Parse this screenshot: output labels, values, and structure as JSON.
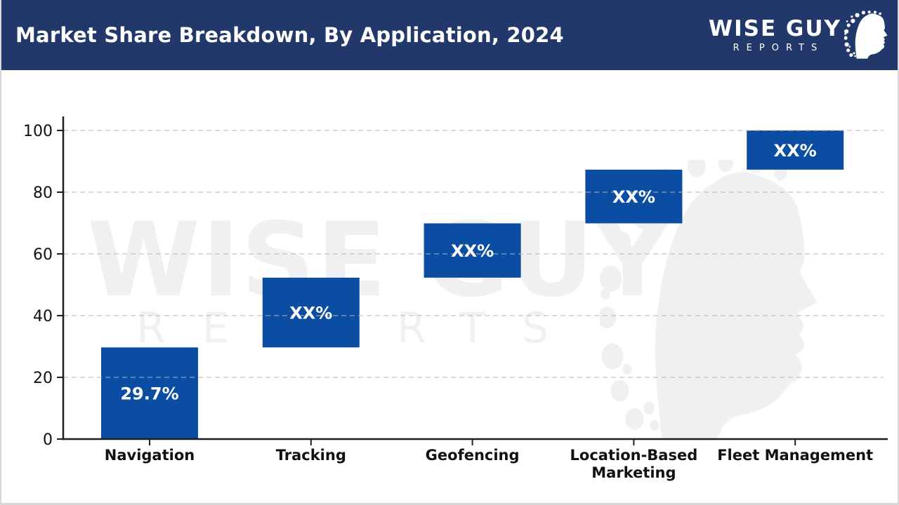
{
  "header": {
    "title": "Market Share Breakdown, By Application, 2024",
    "logo": {
      "name": "WISE GUY",
      "tagline": "REPORTS"
    }
  },
  "watermark": {
    "name": "WISE GUY",
    "tagline": "REPORTS"
  },
  "theme": {
    "header_bg": "#22386A",
    "watermark_gray": "#F0F0F3",
    "border_gray": "#D8D8D8"
  },
  "chart_data": {
    "type": "bar",
    "variant": "waterfall",
    "title": "Market Share Breakdown, By Application, 2024",
    "categories": [
      "Navigation",
      "Tracking",
      "Geofencing",
      "Location-Based Marketing",
      "Fleet Management"
    ],
    "category_label_lines": [
      [
        "Navigation"
      ],
      [
        "Tracking"
      ],
      [
        "Geofencing"
      ],
      [
        "Location-Based",
        "Marketing"
      ],
      [
        "Fleet Management"
      ]
    ],
    "segments": [
      {
        "category": "Navigation",
        "start": 0,
        "end": 29.7,
        "size": 29.7,
        "label": "29.7%"
      },
      {
        "category": "Tracking",
        "start": 29.7,
        "end": 52.3,
        "size": 22.6,
        "label": "XX%"
      },
      {
        "category": "Geofencing",
        "start": 52.3,
        "end": 69.9,
        "size": 17.6,
        "label": "XX%"
      },
      {
        "category": "Location-Based Marketing",
        "start": 69.9,
        "end": 87.3,
        "size": 17.4,
        "label": "XX%"
      },
      {
        "category": "Fleet Management",
        "start": 87.3,
        "end": 100,
        "size": 12.7,
        "label": "XX%"
      }
    ],
    "xlabel": "",
    "ylabel": "",
    "ylim": [
      0,
      100
    ],
    "yticks": [
      0,
      20,
      40,
      60,
      80,
      100
    ],
    "grid": {
      "horizontal": true,
      "style": "dashed",
      "over_bars": true
    },
    "legend": null,
    "colors": {
      "bar": "#0B4DA2",
      "bar_label_text": "#FFFFFF",
      "axis": "#1F1F1F",
      "grid": "#B4B4B4",
      "tick_label": "#111111"
    }
  }
}
